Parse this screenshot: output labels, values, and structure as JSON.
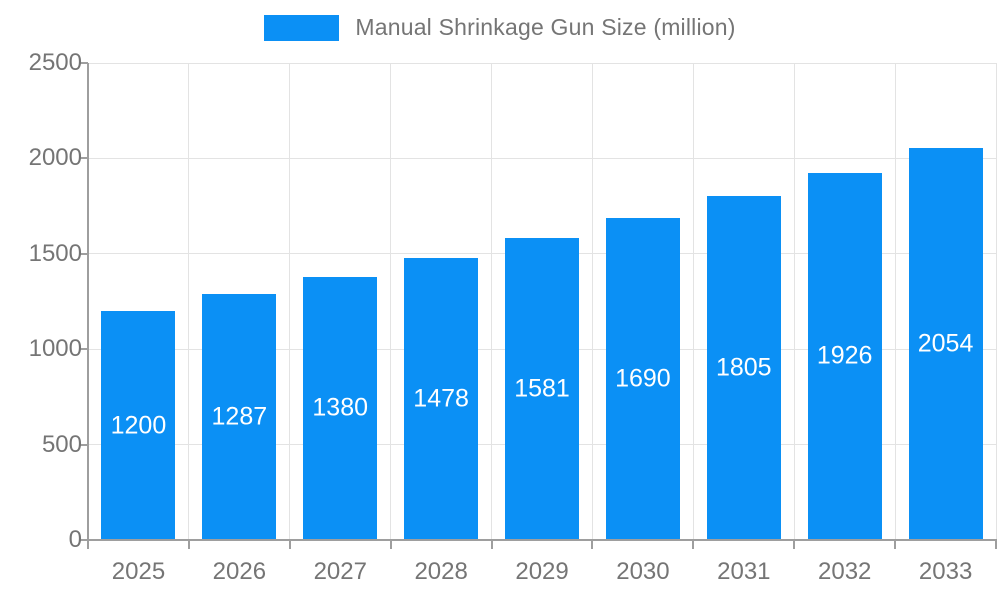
{
  "colors": {
    "bar": "#0b90f5",
    "grid": "#e3e3e3",
    "axis": "#9e9e9e",
    "tick_text": "#757575",
    "bar_label_text": "#ffffff"
  },
  "legend": {
    "label": "Manual Shrinkage Gun Size (million)"
  },
  "chart_data": {
    "type": "bar",
    "title": "Manual Shrinkage Gun Size (million)",
    "categories": [
      "2025",
      "2026",
      "2027",
      "2028",
      "2029",
      "2030",
      "2031",
      "2032",
      "2033"
    ],
    "values": [
      1200,
      1287,
      1380,
      1478,
      1581,
      1690,
      1805,
      1926,
      2054
    ],
    "xlabel": "",
    "ylabel": "",
    "ylim": [
      0,
      2500
    ],
    "ytick_step": 500,
    "ytick_labels": [
      "0",
      "500",
      "1000",
      "1500",
      "2000",
      "2500"
    ],
    "grid": true,
    "legend_position": "top-center",
    "data_labels": "inside-center, white"
  }
}
